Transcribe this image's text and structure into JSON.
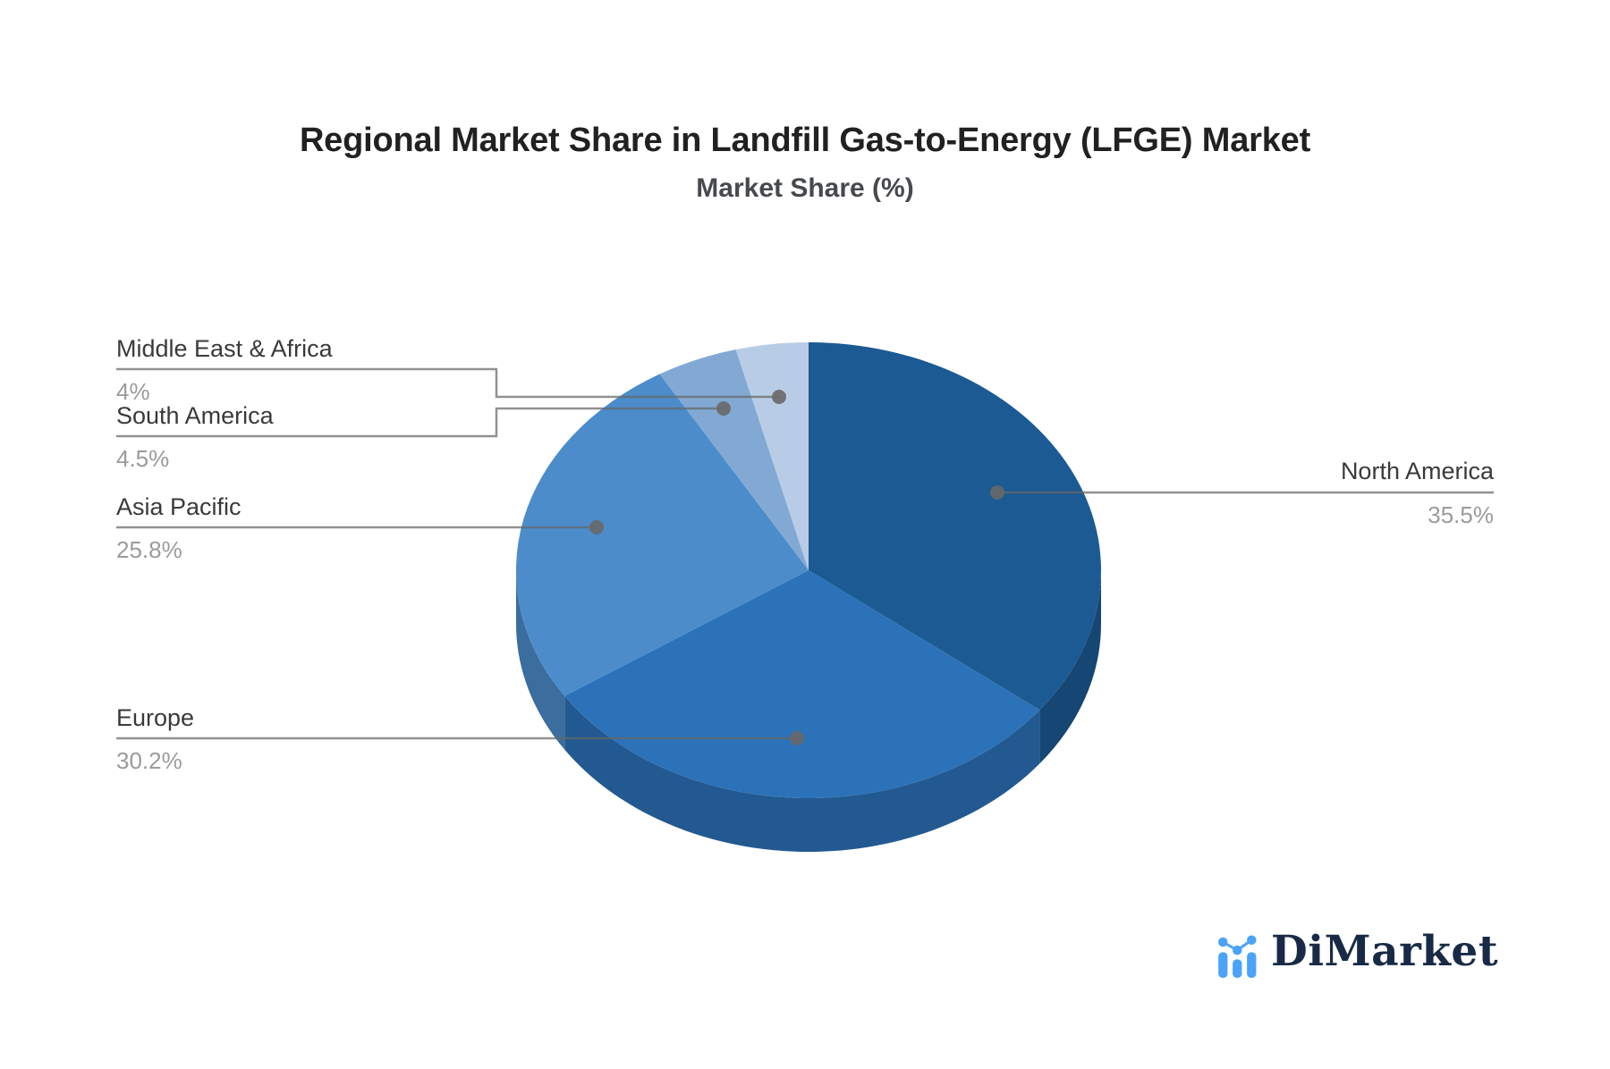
{
  "header": {
    "title": "Regional Market Share in Landfill Gas-to-Energy (LFGE) Market",
    "subtitle": "Market Share (%)"
  },
  "chart_data": {
    "type": "pie",
    "style": "3d",
    "title": "Regional Market Share in Landfill Gas-to-Energy (LFGE) Market",
    "subtitle": "Market Share (%)",
    "unit": "%",
    "direction": "clockwise",
    "start_angle_deg": 0,
    "legend_position": "callout-labels",
    "slices": [
      {
        "name": "North America",
        "value": 35.5,
        "label": "35.5%",
        "color": "#1C5A93"
      },
      {
        "name": "Europe",
        "value": 30.2,
        "label": "30.2%",
        "color": "#2C72B8"
      },
      {
        "name": "Asia Pacific",
        "value": 25.8,
        "label": "25.8%",
        "color": "#4C8CCB"
      },
      {
        "name": "South America",
        "value": 4.5,
        "label": "4.5%",
        "color": "#82A9D4"
      },
      {
        "name": "Middle East & Africa",
        "value": 4.0,
        "label": "4%",
        "color": "#B8CDE5"
      }
    ]
  },
  "branding": {
    "logo_text": "DiMarket",
    "logo_icon": "bar-line-chart-icon",
    "icon_color": "#4BA3F7",
    "text_color": "#182A46"
  },
  "colors": {
    "leader_line": "#666666",
    "leader_dot": "#686868",
    "label_text": "#3a3a3a",
    "value_text": "#9b9b9b"
  }
}
